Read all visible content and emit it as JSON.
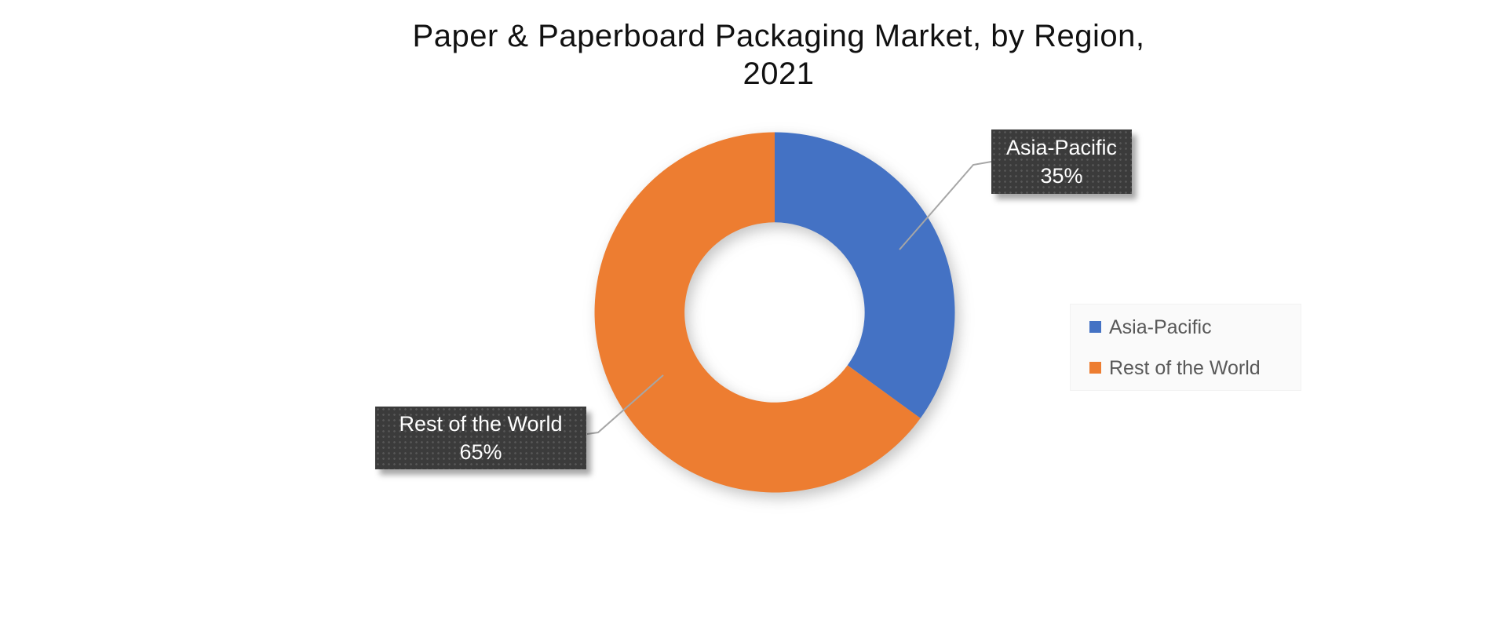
{
  "title": {
    "line1": "Paper & Paperboard Packaging Market, by Region,",
    "line2": "2021"
  },
  "chart_data": {
    "type": "pie",
    "subtype": "donut",
    "title": "Paper & Paperboard Packaging Market, by Region, 2021",
    "categories": [
      "Asia-Pacific",
      "Rest of the World"
    ],
    "values": [
      35,
      65
    ],
    "unit": "%",
    "colors": [
      "#4472C4",
      "#ED7D31"
    ],
    "start_angle_deg": 0,
    "direction": "clockwise",
    "hole_ratio": 0.5,
    "legend_position": "right",
    "data_labels": [
      {
        "label": "Asia-Pacific",
        "value": "35%"
      },
      {
        "label": "Rest of the World",
        "value": "65%"
      }
    ]
  },
  "callouts": {
    "asia": {
      "label": "Asia-Pacific",
      "value": "35%"
    },
    "row": {
      "label": "Rest of the World",
      "value": "65%"
    }
  },
  "legend": {
    "items": [
      {
        "label": "Asia-Pacific",
        "color": "#4472C4"
      },
      {
        "label": "Rest of the World",
        "color": "#ED7D31"
      }
    ]
  },
  "colors": {
    "asia_pacific": "#4472C4",
    "rest_of_world": "#ED7D31",
    "callout_bg": "#3B3B3B",
    "callout_text": "#FFFFFF",
    "legend_text": "#595959",
    "leader_line": "#A6A6A6"
  }
}
